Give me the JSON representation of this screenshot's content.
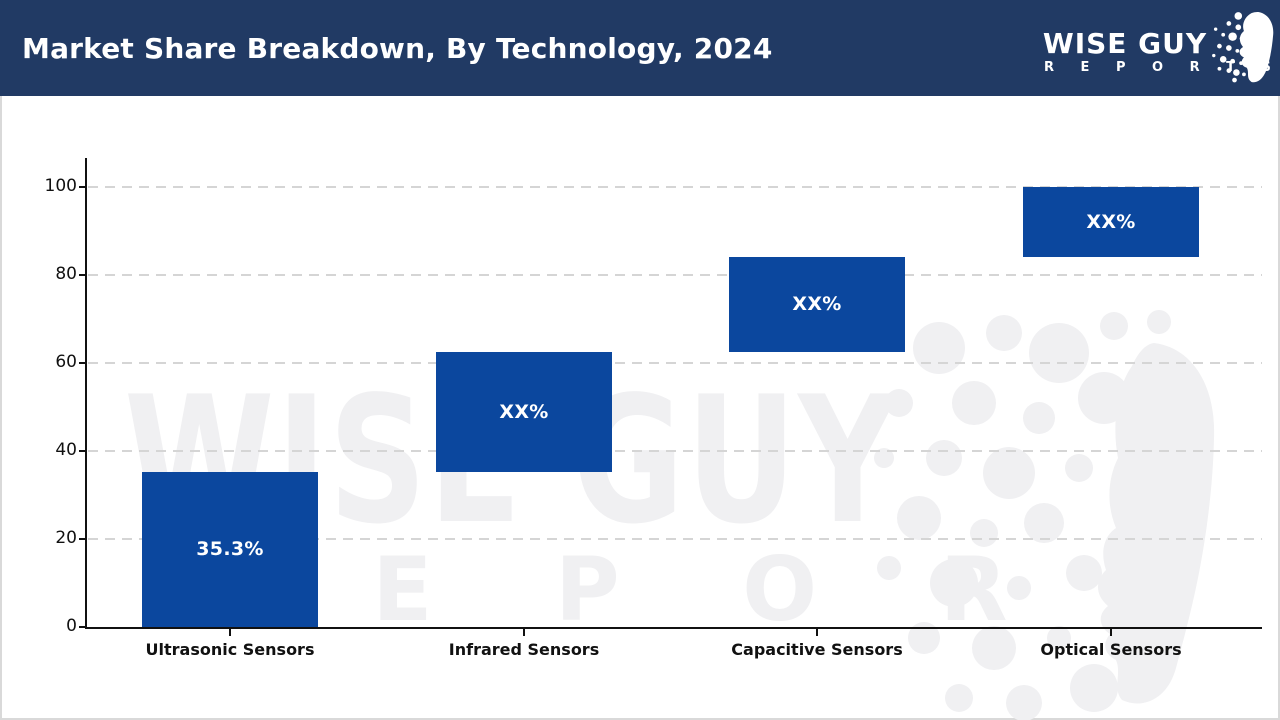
{
  "header": {
    "title": "Market Share Breakdown, By Technology, 2024",
    "logo": {
      "line1": "WISE GUY",
      "line2": "R E P O R T S"
    }
  },
  "watermark": {
    "line1": "WISE GUY",
    "line2": "R E P O R T S"
  },
  "colors": {
    "header_bg": "#213A64",
    "bar": "#0B479E",
    "grid": "#d5d5d5",
    "axis": "#111111",
    "bar_label_text": "#ffffff",
    "watermark": "#f0f0f2",
    "frame_border": "#d9d9d9"
  },
  "chart_data": {
    "type": "bar",
    "subtype": "waterfall-floating-bars",
    "title": "Market Share Breakdown, By Technology, 2024",
    "categories": [
      "Ultrasonic Sensors",
      "Infrared Sensors",
      "Capacitive Sensors",
      "Optical Sensors"
    ],
    "segments": [
      {
        "category": "Ultrasonic Sensors",
        "start": 0,
        "end": 35.3,
        "label": "35.3%"
      },
      {
        "category": "Infrared Sensors",
        "start": 35.3,
        "end": 62.5,
        "label": "XX%"
      },
      {
        "category": "Capacitive Sensors",
        "start": 62.5,
        "end": 84.2,
        "label": "XX%"
      },
      {
        "category": "Optical Sensors",
        "start": 84.2,
        "end": 100,
        "label": "XX%"
      }
    ],
    "ylim": [
      0,
      100
    ],
    "yticks": [
      0,
      20,
      40,
      60,
      80,
      100
    ],
    "xlabel": "",
    "ylabel": "",
    "grid": "horizontal-dashed",
    "legend": "none",
    "bar_color": "#0B479E"
  }
}
